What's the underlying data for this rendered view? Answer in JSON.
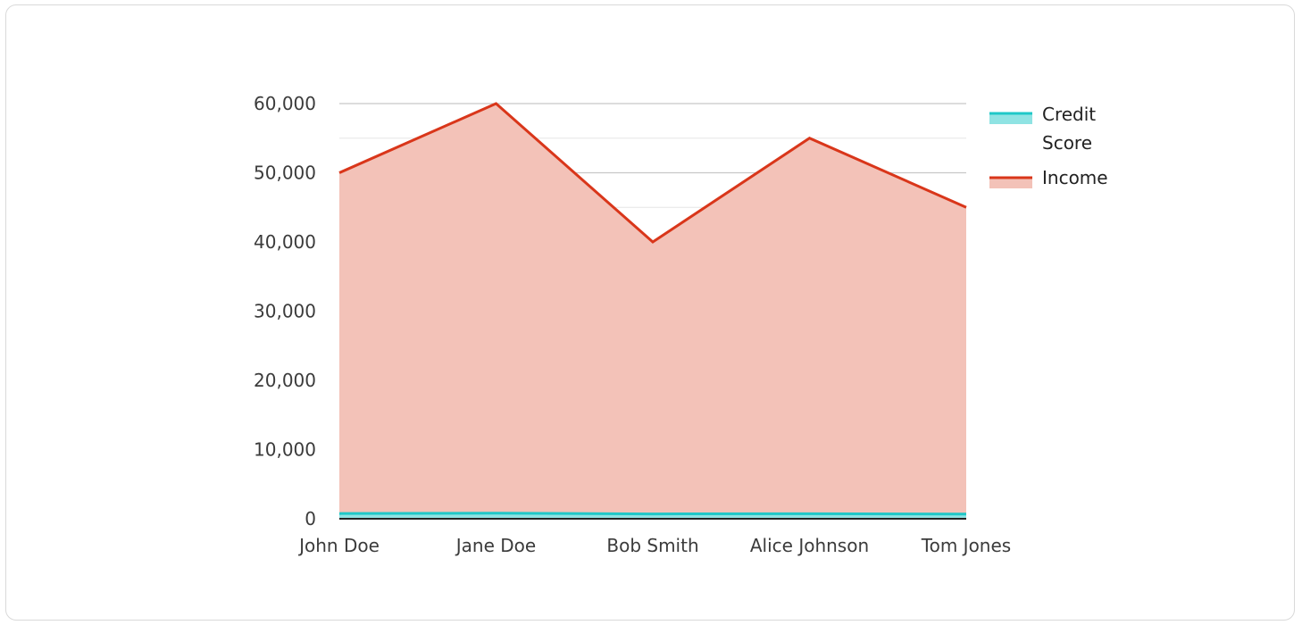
{
  "chart_data": {
    "type": "area",
    "categories": [
      "John Doe",
      "Jane Doe",
      "Bob Smith",
      "Alice Johnson",
      "Tom Jones"
    ],
    "series": [
      {
        "name": "Credit Score",
        "values": [
          750,
          800,
          700,
          720,
          680
        ],
        "line_color": "#1fc8c8",
        "fill_color": "#8fe3e3"
      },
      {
        "name": "Income",
        "values": [
          50000,
          60000,
          40000,
          55000,
          45000
        ],
        "line_color": "#d9361a",
        "fill_color": "#f3c2b8"
      }
    ],
    "yticks": [
      0,
      10000,
      20000,
      30000,
      40000,
      50000,
      60000
    ],
    "ytick_labels": [
      "0",
      "10,000",
      "20,000",
      "30,000",
      "40,000",
      "50,000",
      "60,000"
    ],
    "ylim": [
      0,
      60000
    ],
    "grid": true,
    "legend": {
      "placement": "top-right",
      "entries": [
        {
          "lines": [
            "Credit",
            "Score"
          ]
        },
        {
          "lines": [
            "Income"
          ]
        }
      ]
    }
  }
}
